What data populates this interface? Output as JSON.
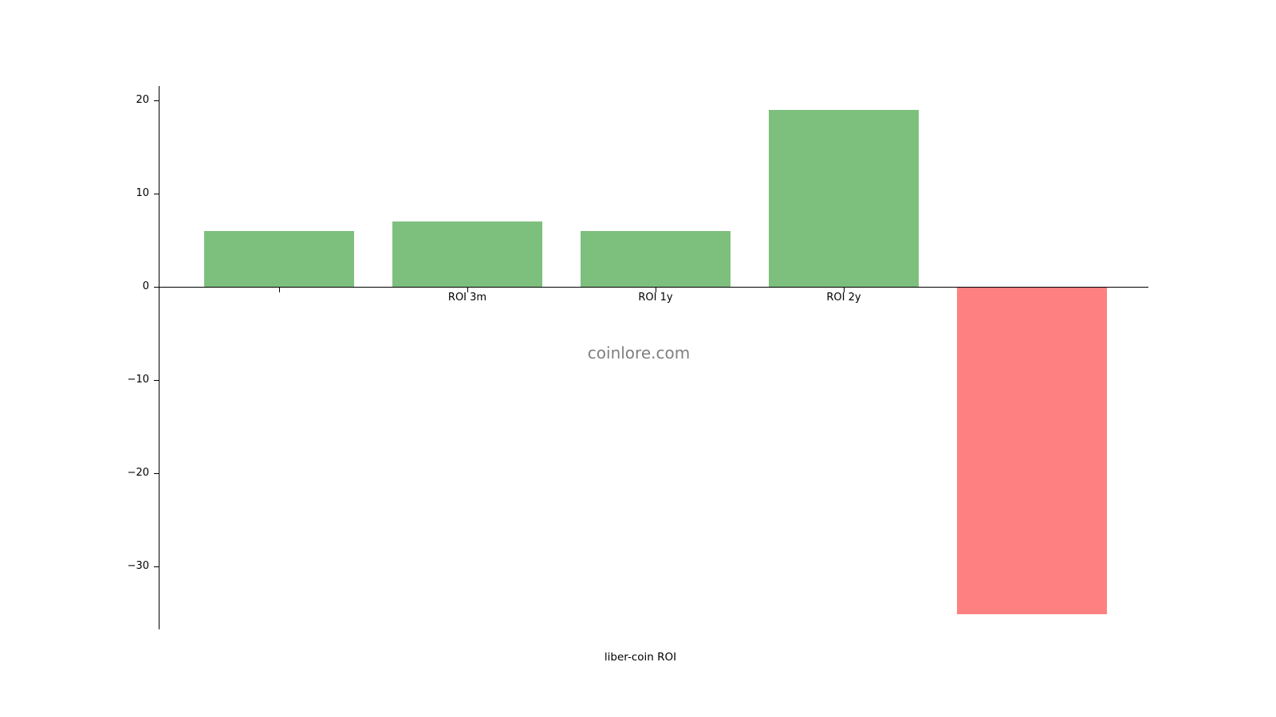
{
  "page": {
    "background": "#ffffff"
  },
  "chart_data": {
    "type": "bar",
    "title": "liber-coin ROI",
    "watermark": "coinlore.com",
    "categories": [
      "",
      "ROI 3m",
      "ROI 1y",
      "ROI 2y",
      ""
    ],
    "values": [
      6,
      7,
      6,
      19,
      -35
    ],
    "bar_colors": [
      "#7dbf7d",
      "#7dbf7d",
      "#7dbf7d",
      "#7dbf7d",
      "#ff8080"
    ],
    "positive_color": "#7dbf7d",
    "negative_color": "#ff8080",
    "y_ticks": [
      {
        "value": 20,
        "label": "20"
      },
      {
        "value": 10,
        "label": "10"
      },
      {
        "value": 0,
        "label": "0"
      },
      {
        "value": -10,
        "label": "−10"
      },
      {
        "value": -20,
        "label": "−20"
      },
      {
        "value": -30,
        "label": "−30"
      }
    ],
    "x_tick_indices": [
      0,
      1,
      2,
      3
    ],
    "xlabel": "",
    "ylabel": "",
    "ylim": [
      -36.8,
      21.6
    ],
    "grid": false,
    "legend": false,
    "axis_color": "#000000",
    "text_color": "#000000",
    "watermark_color": "#808080"
  }
}
